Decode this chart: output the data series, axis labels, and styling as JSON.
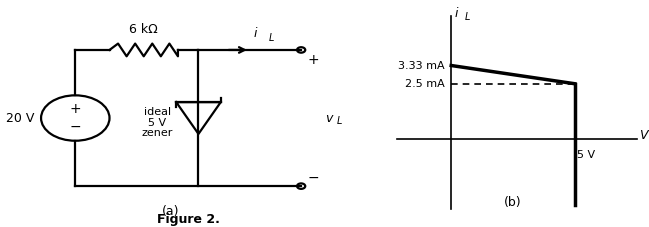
{
  "fig_width": 6.49,
  "fig_height": 2.27,
  "dpi": 100,
  "left_panel": {
    "resistor_label": "6 kΩ",
    "source_label": "20 V",
    "zener_label1": "ideal",
    "zener_label2": "5 V",
    "zener_label3": "zener",
    "il_label": "i",
    "il_sub": "L",
    "vl_label": "v",
    "vl_sub": "L",
    "panel_label": "(a)",
    "figure_label": "Figure 2.",
    "plus_sign": "+",
    "minus_sign": "−"
  },
  "right_panel": {
    "panel_label": "(b)",
    "il_axis_label": "i",
    "il_axis_sub": "L",
    "vl_axis_label": "V",
    "vl_axis_sub": "L",
    "val_3_33": "3.33 mA",
    "val_2_5": "2.5 mA",
    "val_5v": "5 V",
    "i_3_33": 3.33,
    "i_2_5": 2.5,
    "v_5": 5.0,
    "line_color": "black",
    "dashed_color": "black"
  }
}
